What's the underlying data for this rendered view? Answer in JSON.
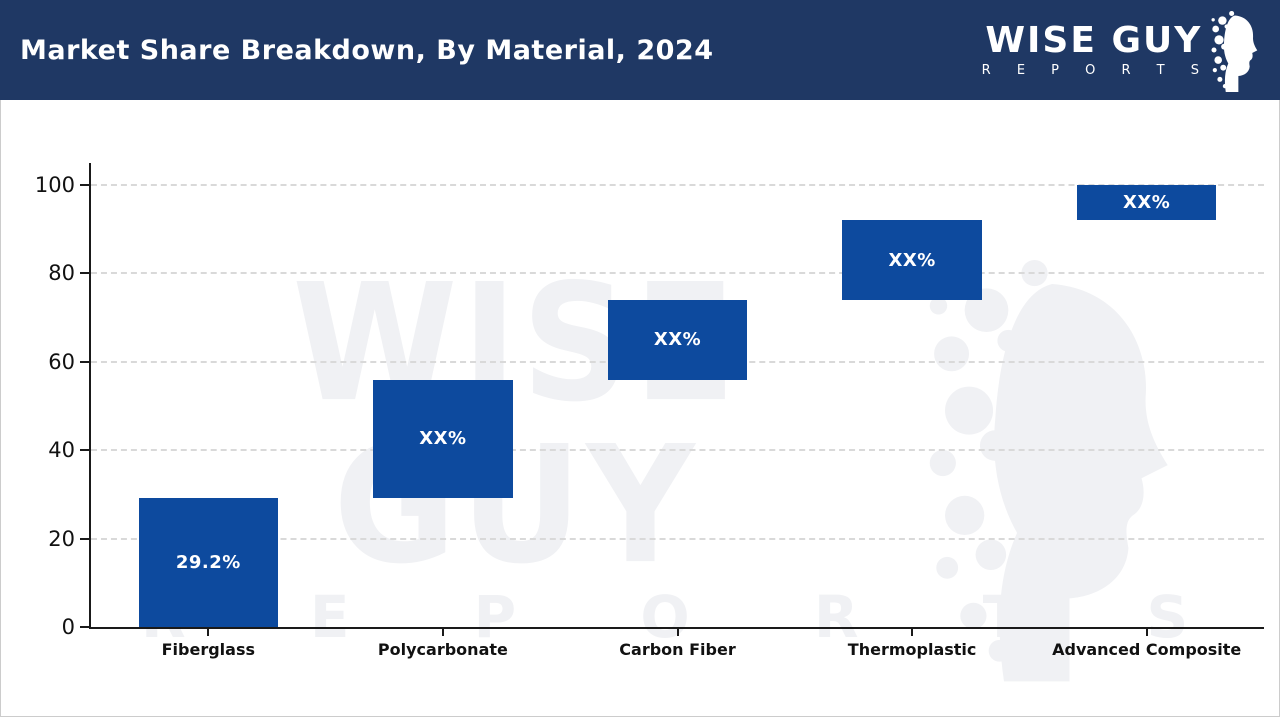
{
  "header": {
    "title": "Market Share Breakdown, By Material, 2024",
    "logo": {
      "line1": "WISE GUY",
      "line2": "R E P O R T S"
    }
  },
  "watermark": {
    "line1": "WISE GUY",
    "line2": "R E P O R T S"
  },
  "chart_data": {
    "type": "bar",
    "subtype": "waterfall",
    "title": "Market Share Breakdown, By Material, 2024",
    "categories": [
      "Fiberglass",
      "Polycarbonate",
      "Carbon Fiber",
      "Thermoplastic",
      "Advanced Composite"
    ],
    "segments": [
      {
        "category": "Fiberglass",
        "start": 0,
        "end": 29.2,
        "label": "29.2%"
      },
      {
        "category": "Polycarbonate",
        "start": 29.2,
        "end": 56,
        "label": "XX%"
      },
      {
        "category": "Carbon Fiber",
        "start": 56,
        "end": 74,
        "label": "XX%"
      },
      {
        "category": "Thermoplastic",
        "start": 74,
        "end": 92,
        "label": "XX%"
      },
      {
        "category": "Advanced Composite",
        "start": 92,
        "end": 100,
        "label": "XX%"
      }
    ],
    "ylim": [
      0,
      105
    ],
    "yticks": [
      0,
      20,
      40,
      60,
      80,
      100
    ],
    "grid": "horizontal dashed",
    "legend": "none",
    "bar_color": "#0d4a9e",
    "bar_label_color": "#ffffff",
    "axis_color": "#1a1a1a",
    "header_bg_color": "#1f3864",
    "watermark_color": "#f0f1f4"
  }
}
